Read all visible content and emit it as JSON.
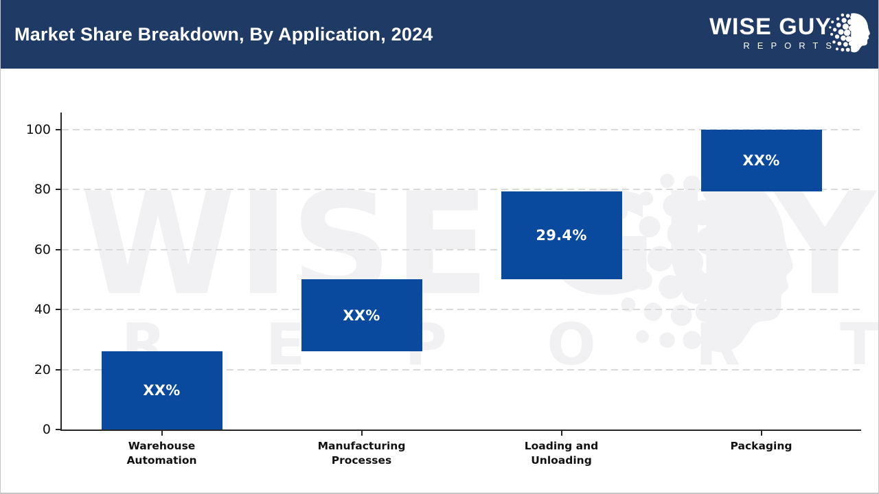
{
  "header": {
    "title": "Market Share Breakdown, By Application, 2024",
    "background_color": "#203A66",
    "logo": {
      "wordmark": "WISE GUY",
      "subtext": "REPORTS"
    }
  },
  "watermark": {
    "wordmark": "WISE GUY",
    "subtext": "R E P O R T S"
  },
  "colors": {
    "bar": "#0A4A9E",
    "bar_label": "#FFFFFF",
    "grid": "#DADADA",
    "axis": "#262626",
    "tick_label": "#111111",
    "watermark": "#F1F1F4"
  },
  "chart_data": {
    "type": "bar",
    "subtype": "waterfall (floating percentage segments)",
    "title": "Market Share Breakdown, By Application, 2024",
    "xlabel": "",
    "ylabel": "",
    "ylim": [
      0,
      105.6
    ],
    "yticks": [
      0,
      20,
      40,
      60,
      80,
      100
    ],
    "grid": "horizontal dashed",
    "legend": "none",
    "categories": [
      "Warehouse Automation",
      "Manufacturing Processes",
      "Loading and Unloading",
      "Packaging"
    ],
    "segments": [
      {
        "category_lines": [
          "Warehouse",
          "Automation"
        ],
        "base": 0,
        "top": 26,
        "value": 26,
        "label": "XX%"
      },
      {
        "category_lines": [
          "Manufacturing",
          "Processes"
        ],
        "base": 26,
        "top": 50,
        "value": 24,
        "label": "XX%"
      },
      {
        "category_lines": [
          "Loading and",
          "Unloading"
        ],
        "base": 50,
        "top": 79.4,
        "value": 29.4,
        "label": "29.4%"
      },
      {
        "category_lines": [
          "Packaging"
        ],
        "base": 79.4,
        "top": 100,
        "value": 20.6,
        "label": "XX%"
      }
    ]
  }
}
